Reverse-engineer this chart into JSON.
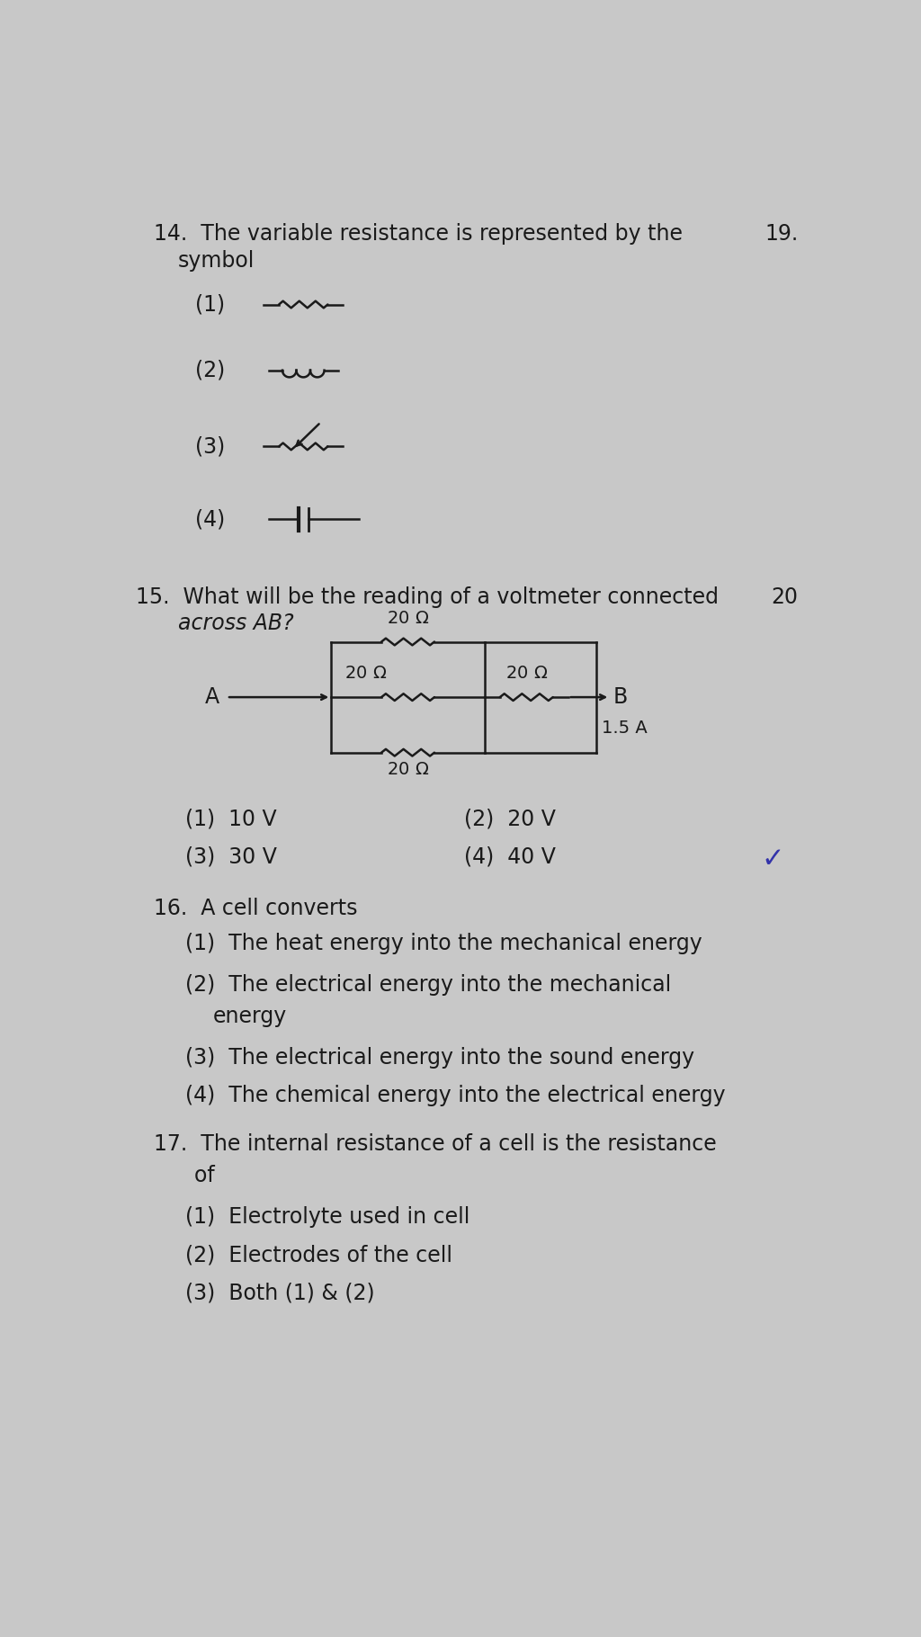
{
  "bg_color": "#c8c8c8",
  "text_color": "#1a1a1a",
  "body_fontsize": 17,
  "circuit_fontsize": 14,
  "q14_line1": "14.  The variable resistance is represented by the",
  "q14_line2": "symbol",
  "q14_opt1": "(1)",
  "q14_opt2": "(2)",
  "q14_opt3": "(3)",
  "q14_opt4": "(4)",
  "q15_line1": "15.  What will be the reading of a voltmeter connected",
  "q15_line2": "across AB?",
  "q15_o1l": "(1)  10 V",
  "q15_o1r": "(2)  20 V",
  "q15_o2l": "(3)  30 V",
  "q15_o2r": "(4)  40 V",
  "q16_line1": "16.  A cell converts",
  "q16_o1": "(1)  The heat energy into the mechanical energy",
  "q16_o2a": "(2)  The electrical energy into the mechanical",
  "q16_o2b": "      energy",
  "q16_o3": "(3)  The electrical energy into the sound energy",
  "q16_o4": "(4)  The chemical energy into the electrical energy",
  "q17_line1": "17.  The internal resistance of a cell is the resistance",
  "q17_line2": "      of",
  "q17_o1": "(1)  Electrolyte used in cell",
  "q17_o2": "(2)  Electrodes of the cell",
  "q17_o3": "(3)  Both (1) & (2)",
  "num19": "19.",
  "num20": "20"
}
